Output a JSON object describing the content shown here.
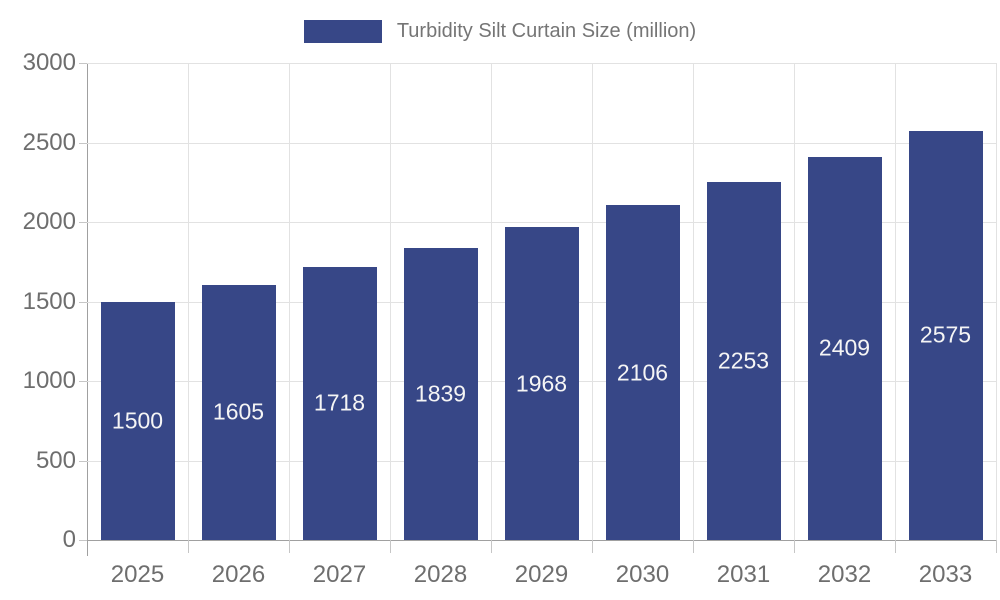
{
  "legend": {
    "label": "Turbidity Silt Curtain Size (million)"
  },
  "chart_data": {
    "type": "bar",
    "title": "Turbidity Silt Curtain Size (million)",
    "categories": [
      "2025",
      "2026",
      "2027",
      "2028",
      "2029",
      "2030",
      "2031",
      "2032",
      "2033"
    ],
    "values": [
      1500,
      1605,
      1718,
      1839,
      1968,
      2106,
      2253,
      2409,
      2575
    ],
    "xlabel": "",
    "ylabel": "",
    "ylim": [
      0,
      3000
    ],
    "ytick_step": 500,
    "ytick_labels": [
      "0",
      "500",
      "1000",
      "1500",
      "2000",
      "2500",
      "3000"
    ],
    "grid": true,
    "legend_position": "top-center",
    "bar_labels_inside": true,
    "style": {
      "bar_color": "#374787",
      "bar_label_color": "#f5f5f5",
      "grid_color": "#e2e2e2",
      "axis_color": "#a0a0a0",
      "tick_color": "#c6c6c6",
      "axis_label_color": "#6e6e6e",
      "legend_text_color": "#757575",
      "background": "#ffffff"
    }
  }
}
